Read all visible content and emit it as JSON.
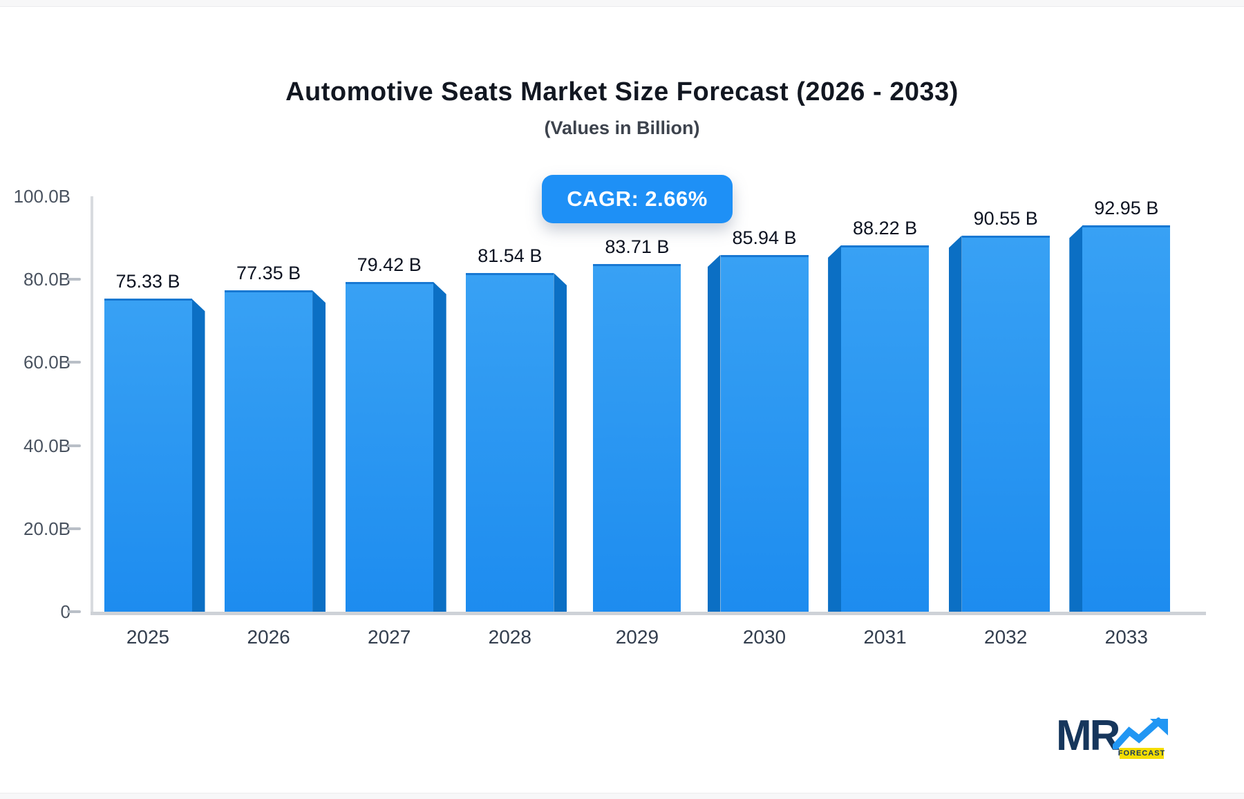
{
  "page": {
    "background": "#ffffff",
    "edge_strip_color": "#f7f7f8"
  },
  "chart_data": {
    "type": "bar",
    "title": "Automotive Seats Market Size Forecast (2026 - 2033)",
    "subtitle": "(Values in Billion)",
    "annotation": "CAGR: 2.66%",
    "categories": [
      "2025",
      "2026",
      "2027",
      "2028",
      "2029",
      "2030",
      "2031",
      "2032",
      "2033"
    ],
    "values": [
      75.33,
      77.35,
      79.42,
      81.54,
      83.71,
      85.94,
      88.22,
      90.55,
      92.95
    ],
    "value_labels": [
      "75.33 B",
      "77.35 B",
      "79.42 B",
      "81.54 B",
      "83.71 B",
      "85.94 B",
      "88.22 B",
      "90.55 B",
      "92.95 B"
    ],
    "ylim": [
      0,
      100
    ],
    "y_ticks": [
      {
        "label": "100.0B",
        "value": 100,
        "dash": false
      },
      {
        "label": "80.0B",
        "value": 80,
        "dash": true
      },
      {
        "label": "60.0B",
        "value": 60,
        "dash": true
      },
      {
        "label": "40.0B",
        "value": 40,
        "dash": true
      },
      {
        "label": "20.0B",
        "value": 20,
        "dash": true
      },
      {
        "label": "0",
        "value": 0,
        "dash": true
      }
    ],
    "grid": false,
    "legend": null,
    "colors": {
      "bar_top": "#38a1f4",
      "bar_bottom": "#1d8cef",
      "bar_top_edge": "#1878d2",
      "bar_side": "#0b6fc4",
      "y_axis_line": "#d8dbdf",
      "x_axis_line": "#ced2d7",
      "tick_dash": "#b9bfc7",
      "badge_background": "#1e90f6"
    }
  },
  "logo": {
    "text": "MR",
    "sub": "FORECAST",
    "navy": "#16365c",
    "blue": "#2196f3",
    "yellow": "#f5dd00"
  }
}
